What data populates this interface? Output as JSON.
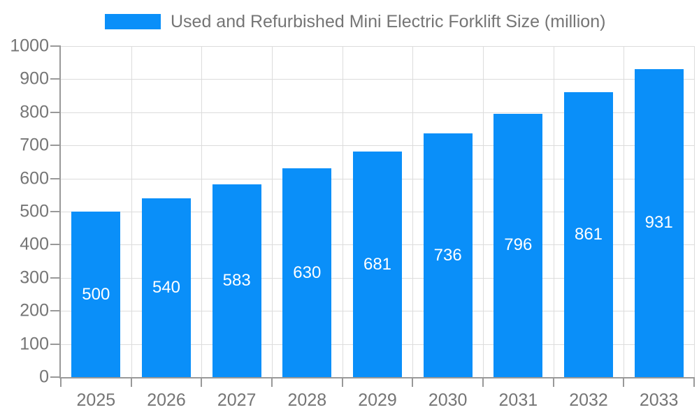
{
  "chart_data": {
    "type": "bar",
    "title": "Used and Refurbished Mini Electric Forklift Size (million)",
    "categories": [
      "2025",
      "2026",
      "2027",
      "2028",
      "2029",
      "2030",
      "2031",
      "2032",
      "2033"
    ],
    "values": [
      500,
      540,
      583,
      630,
      681,
      736,
      796,
      861,
      931
    ],
    "series": [
      {
        "name": "Used and Refurbished Mini Electric Forklift Size (million)",
        "values": [
          500,
          540,
          583,
          630,
          681,
          736,
          796,
          861,
          931
        ]
      }
    ],
    "xlabel": "",
    "ylabel": "",
    "ylim": [
      0,
      1000
    ],
    "yticks": [
      0,
      100,
      200,
      300,
      400,
      500,
      600,
      700,
      800,
      900,
      1000
    ],
    "grid": true,
    "value_labels": "centered-inside-bars",
    "legend_position": "top-center",
    "colors": {
      "bar": "#0a8ff9",
      "grid_line": "#dcdcdc",
      "axis_line": "#999999",
      "tick_text": "#757575",
      "legend_text": "#757575",
      "value_label": "#ffffff",
      "background": "#ffffff"
    }
  }
}
